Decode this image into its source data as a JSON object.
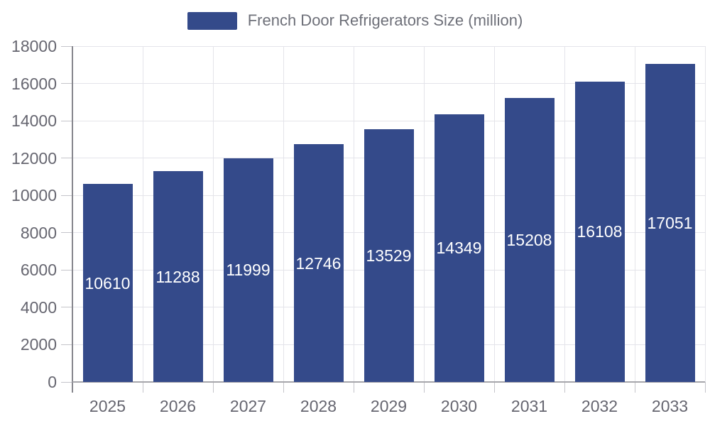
{
  "legend": {
    "label": "French Door Refrigerators Size (million)"
  },
  "chart_data": {
    "type": "bar",
    "title": "French Door Refrigerators Size (million)",
    "categories": [
      "2025",
      "2026",
      "2027",
      "2028",
      "2029",
      "2030",
      "2031",
      "2032",
      "2033"
    ],
    "values": [
      10610,
      11288,
      11999,
      12746,
      13529,
      14349,
      15208,
      16108,
      17051
    ],
    "xlabel": "",
    "ylabel": "",
    "ylim": [
      0,
      18000
    ],
    "ytick_step": 2000,
    "ytick_labels": [
      "0",
      "2000",
      "4000",
      "6000",
      "8000",
      "10000",
      "12000",
      "14000",
      "16000",
      "18000"
    ],
    "grid": true,
    "legend_position": "top-center",
    "bar_value_labels_inside": true,
    "colors": {
      "bar": "#344a8a",
      "bar_label_text": "#ffffff",
      "axis_text": "#666670",
      "legend_text": "#6e7079",
      "gridline": "#e4e4ea",
      "y_axis_line": "#87878e",
      "x_axis_line": "#a6a6ab",
      "tick": "#c4c4ca",
      "background": "#ffffff"
    }
  }
}
